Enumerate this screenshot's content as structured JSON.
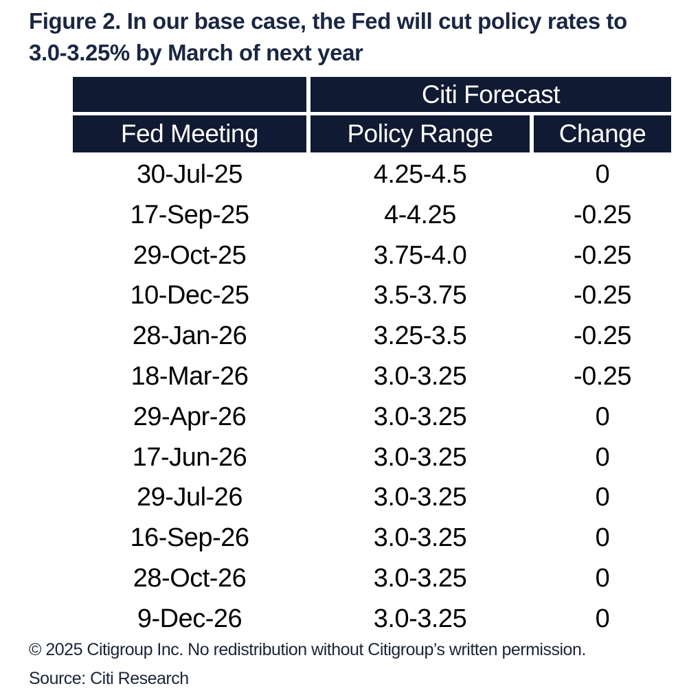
{
  "title": {
    "line1": "Figure 2. In our base case, the Fed will cut policy rates to",
    "line2": "3.0-3.25% by March of next year"
  },
  "chart_data": {
    "type": "table",
    "title": "Figure 2. In our base case, the Fed will cut policy rates to 3.0-3.25% by March of next year",
    "group_header": "Citi Forecast",
    "columns": [
      "Fed Meeting",
      "Policy Range",
      "Change"
    ],
    "rows": [
      [
        "30-Jul-25",
        "4.25-4.5",
        "0"
      ],
      [
        "17-Sep-25",
        "4-4.25",
        "-0.25"
      ],
      [
        "29-Oct-25",
        "3.75-4.0",
        "-0.25"
      ],
      [
        "10-Dec-25",
        "3.5-3.75",
        "-0.25"
      ],
      [
        "28-Jan-26",
        "3.25-3.5",
        "-0.25"
      ],
      [
        "18-Mar-26",
        "3.0-3.25",
        "-0.25"
      ],
      [
        "29-Apr-26",
        "3.0-3.25",
        "0"
      ],
      [
        "17-Jun-26",
        "3.0-3.25",
        "0"
      ],
      [
        "29-Jul-26",
        "3.0-3.25",
        "0"
      ],
      [
        "16-Sep-26",
        "3.0-3.25",
        "0"
      ],
      [
        "28-Oct-26",
        "3.0-3.25",
        "0"
      ],
      [
        "9-Dec-26",
        "3.0-3.25",
        "0"
      ]
    ]
  },
  "footer": {
    "copyright": "© 2025 Citigroup Inc. No redistribution without Citigroup’s written permission.",
    "source": "Source: Citi Research"
  },
  "colors": {
    "header_background": "#111A33",
    "header_text": "#FFFFFF",
    "title_text": "#1A2742",
    "body_text": "#000000"
  }
}
